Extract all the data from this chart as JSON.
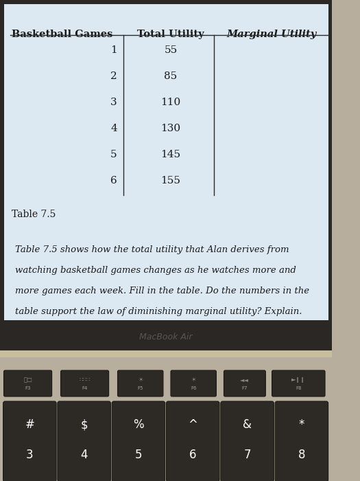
{
  "col1": "Basketball Games",
  "col2": "Total Utility",
  "col3": "Marginal Utility",
  "games": [
    "1",
    "2",
    "3",
    "4",
    "5",
    "6"
  ],
  "total_utility": [
    "55",
    "85",
    "110",
    "130",
    "145",
    "155"
  ],
  "table_label": "Table 7.5",
  "desc_line1": "Table 7.5 shows how the total utility that Alan derives from",
  "desc_line2": "watching basketball games changes as he watches more and",
  "desc_line3": "more games each week. Fill in the table. Do the numbers in the",
  "desc_line4": "table support the law of diminishing marginal utility? Explain.",
  "macbook_text": "MacBook Air",
  "screen_bg": "#d4dee8",
  "content_bg": "#dce8f2",
  "text_color": "#1a1a1a",
  "line_color": "#2a2a2a",
  "bezel_color": "#3a3835",
  "body_color": "#b8ae9e",
  "key_bg": "#2d2a26",
  "key_edge": "#1a1815",
  "key_text": "#e0ddd8",
  "fkey_label_color": "#a0a0a0",
  "macbook_text_color": "#5a5550"
}
